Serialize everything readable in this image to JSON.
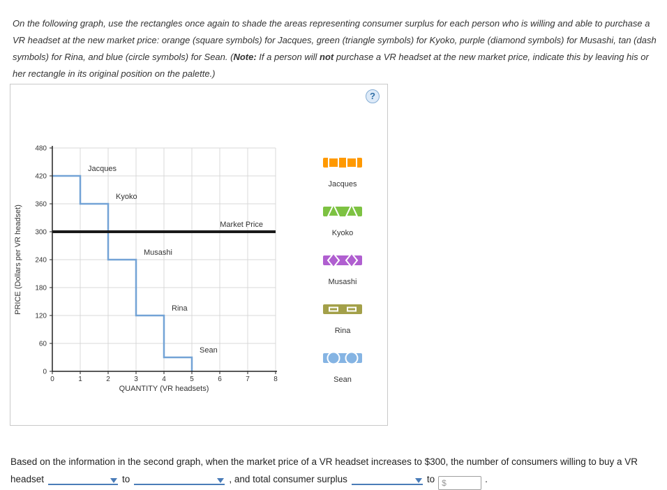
{
  "instructions": {
    "part1": "On the following graph, use the rectangles once again to shade the areas representing consumer surplus for each person who is willing and able to purchase a VR headset at the new market price: orange (square symbols) for Jacques, green (triangle symbols) for Kyoko, purple (diamond symbols) for Musashi, tan (dash symbols) for Rina, and blue (circle symbols) for Sean. (",
    "note_label": "Note:",
    "part2": " If a person will ",
    "emph": "not",
    "part3": " purchase a VR headset at the new market price, indicate this by leaving his or her rectangle in its original position on the palette.)"
  },
  "panel": {
    "help_label": "?"
  },
  "chart_data": {
    "type": "line",
    "subtype": "step-demand",
    "xlabel": "QUANTITY (VR headsets)",
    "ylabel": "PRICE (Dollars per VR headset)",
    "xlim": [
      0,
      8
    ],
    "ylim": [
      0,
      480
    ],
    "x_ticks": [
      0,
      1,
      2,
      3,
      4,
      5,
      6,
      7,
      8
    ],
    "y_ticks": [
      0,
      60,
      120,
      180,
      240,
      300,
      360,
      420,
      480
    ],
    "grid": true,
    "line_color": "#73A3D6",
    "steps": [
      {
        "name": "Jacques",
        "price": 420,
        "from": 0,
        "to": 1
      },
      {
        "name": "Kyoko",
        "price": 360,
        "from": 1,
        "to": 2
      },
      {
        "name": "Musashi",
        "price": 240,
        "from": 2,
        "to": 3
      },
      {
        "name": "Rina",
        "price": 120,
        "from": 3,
        "to": 4
      },
      {
        "name": "Sean",
        "price": 30,
        "from": 4,
        "to": 5
      }
    ],
    "market_price": {
      "label": "Market Price",
      "value": 300,
      "color": "#1a1a1a"
    }
  },
  "palette": {
    "items": [
      {
        "name": "Jacques",
        "color": "#FF9900",
        "symbol": "square"
      },
      {
        "name": "Kyoko",
        "color": "#7DC242",
        "symbol": "triangle"
      },
      {
        "name": "Musashi",
        "color": "#B05FD0",
        "symbol": "diamond"
      },
      {
        "name": "Rina",
        "color": "#A3A049",
        "symbol": "dash"
      },
      {
        "name": "Sean",
        "color": "#85B4E3",
        "symbol": "circle"
      }
    ]
  },
  "question": {
    "part1": "Based on the information in the second graph, when the market price of a VR headset increases to $300, the number of consumers willing to buy a VR headset",
    "to1": "to",
    "part2": ", and total consumer surplus",
    "to2": "to",
    "currency": "$",
    "period": "."
  }
}
